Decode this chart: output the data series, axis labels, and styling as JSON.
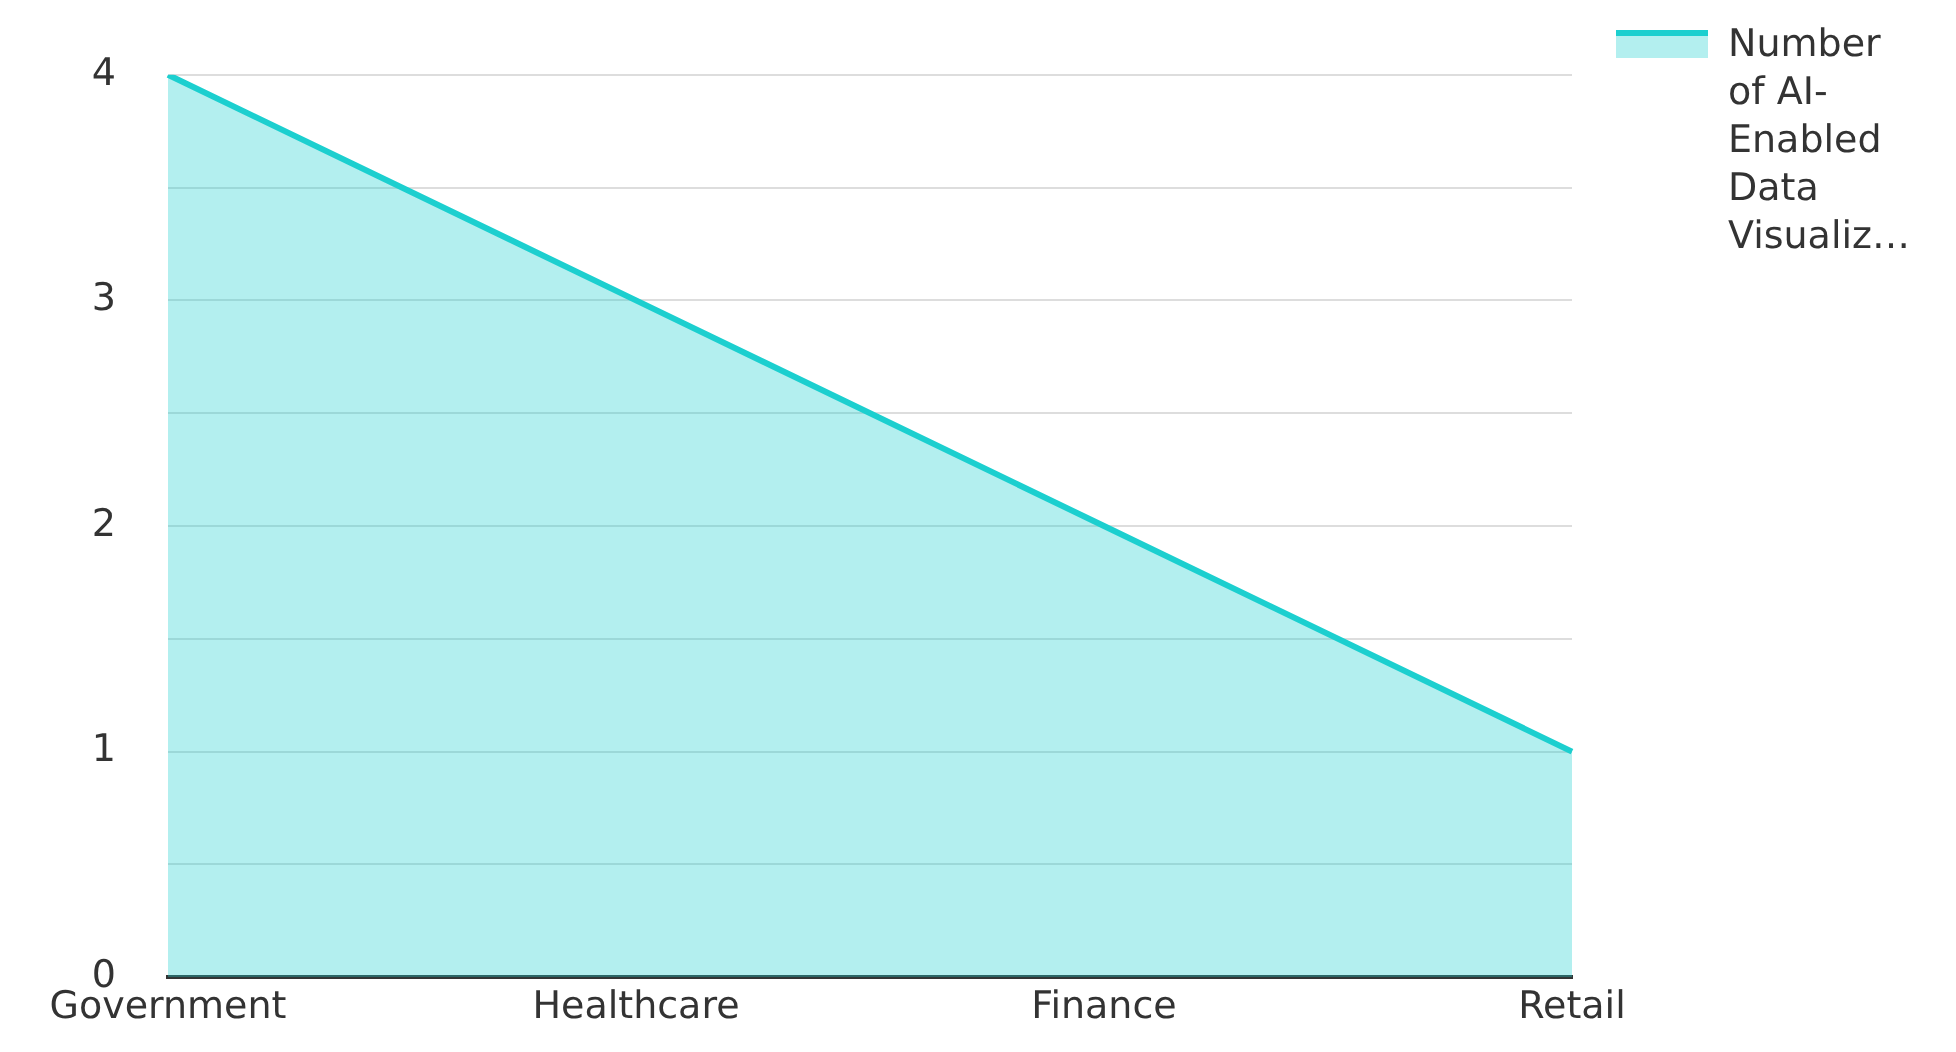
{
  "chart_data": {
    "type": "area",
    "categories": [
      "Government",
      "Healthcare",
      "Finance",
      "Retail"
    ],
    "series": [
      {
        "name": "Number of AI-Enabled Data Visualiz…",
        "color": "#1ccfcf",
        "values": [
          4,
          3,
          2,
          1
        ]
      }
    ],
    "ylim": [
      0,
      4
    ],
    "yticks": [
      0,
      {
        "value": 0.5,
        "label": null
      },
      1,
      {
        "value": 1.5,
        "label": null
      },
      2,
      {
        "value": 2.5,
        "label": null
      },
      3,
      {
        "value": 3.5,
        "label": null
      },
      4
    ],
    "grid": "y",
    "legend": "top right",
    "marker": "none",
    "line_style": "solid"
  }
}
